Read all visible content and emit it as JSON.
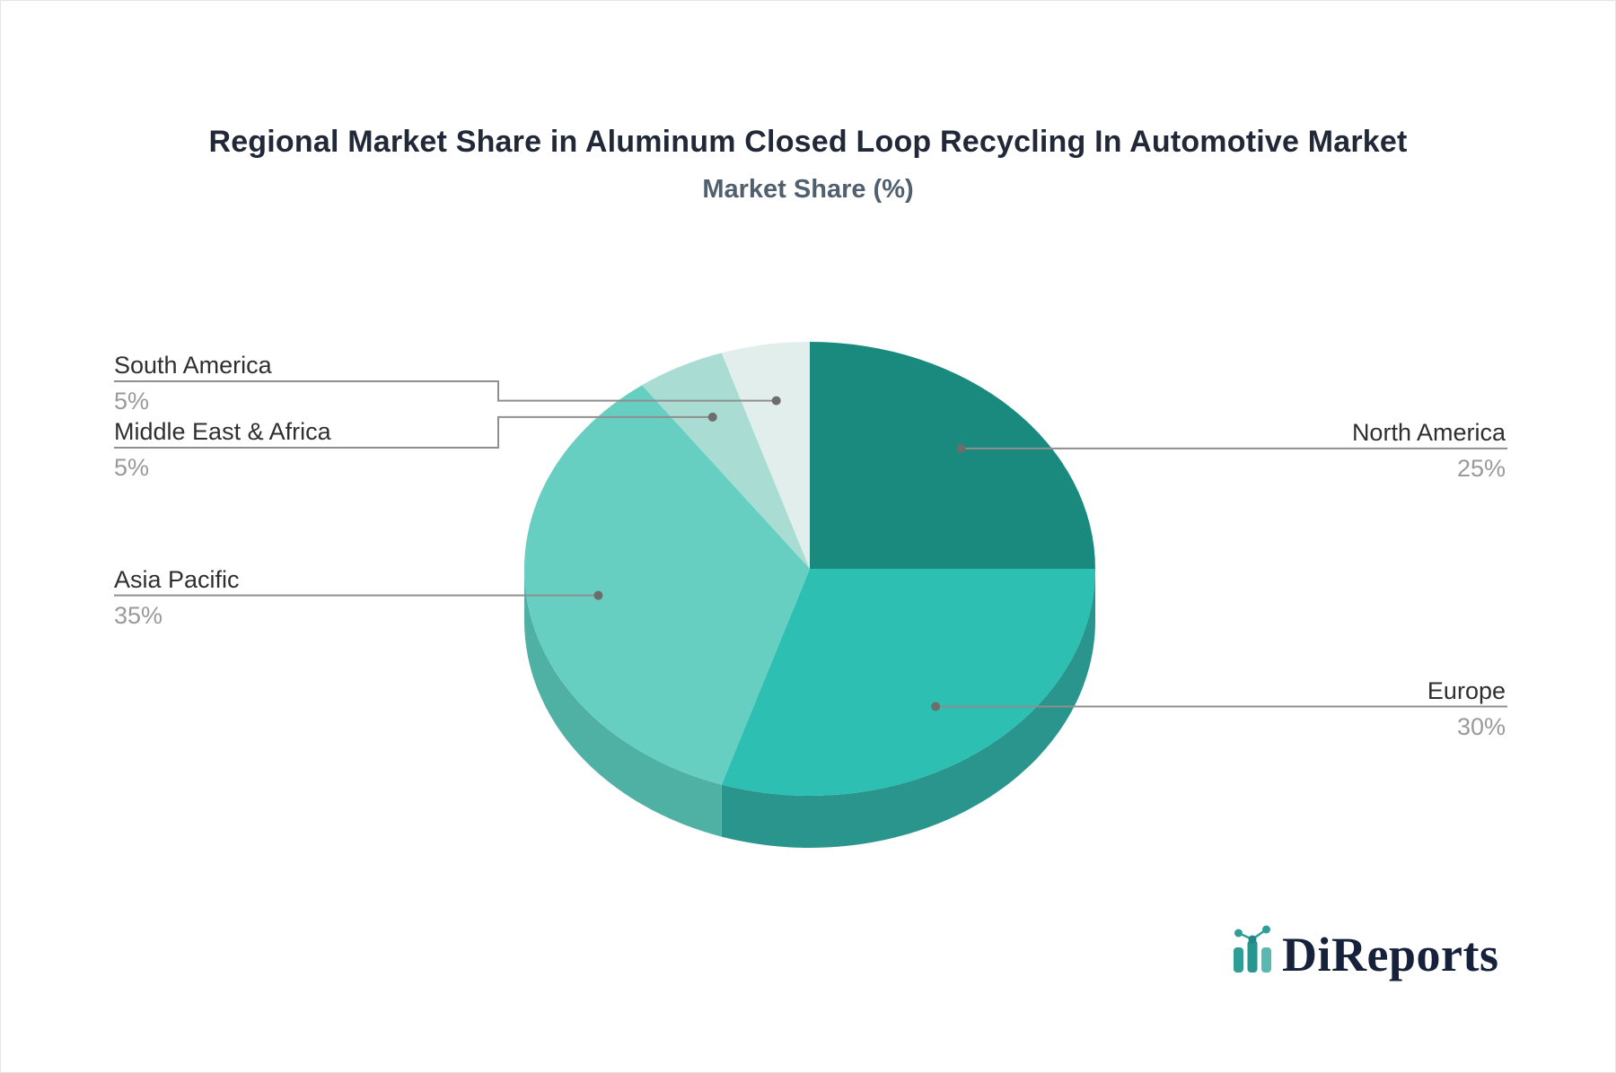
{
  "chart_data": {
    "type": "pie",
    "title": "Regional Market Share in Aluminum Closed Loop Recycling In Automotive Market",
    "subtitle": "Market Share (%)",
    "unit": "%",
    "style": "3d-pie",
    "start_angle_deg": 0,
    "direction": "clockwise",
    "slices": [
      {
        "name": "North America",
        "value": 25,
        "pct": "25%",
        "color": "#1a8a7e",
        "side_color": "#157065"
      },
      {
        "name": "Europe",
        "value": 30,
        "pct": "30%",
        "color": "#2dbfb2",
        "side_color": "#2a958c"
      },
      {
        "name": "Asia Pacific",
        "value": 35,
        "pct": "35%",
        "color": "#67cfc2",
        "side_color": "#4fb0a4"
      },
      {
        "name": "Middle East & Africa",
        "value": 5,
        "pct": "5%",
        "color": "#a9dcd3",
        "side_color": "#8cbcb3"
      },
      {
        "name": "South America",
        "value": 5,
        "pct": "5%",
        "color": "#e2eeeb",
        "side_color": "#c2cdca"
      }
    ],
    "legend": "none",
    "labels_layout": "callout lines with dots"
  },
  "colors": {
    "leader_line": "#8f8f8f",
    "leader_dot": "#6d6d6d",
    "label_text": "#2f2f2f",
    "value_text": "#9a9a9a",
    "title": "#212838",
    "subtitle": "#50606e"
  },
  "logo": {
    "text": "DiReports"
  }
}
